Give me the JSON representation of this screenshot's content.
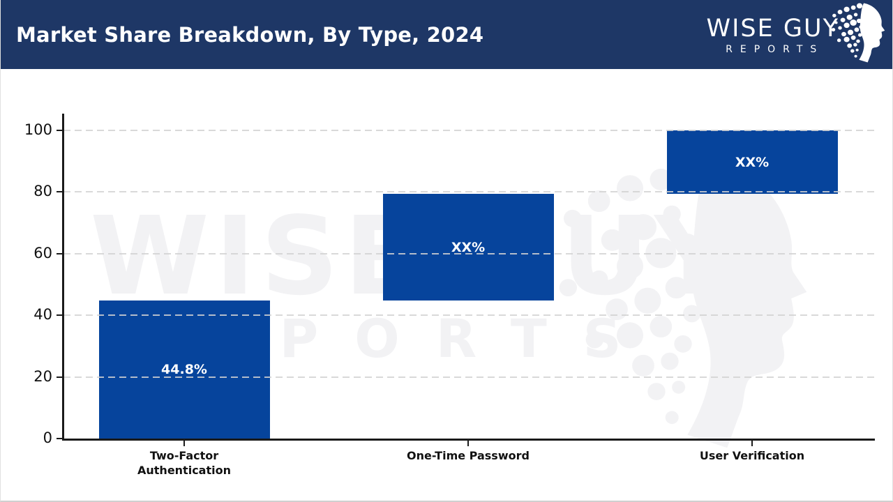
{
  "header": {
    "title": "Market Share Breakdown, By Type, 2024",
    "logo": {
      "name": "WISE GUY",
      "sub": "REPORTS"
    }
  },
  "watermark": {
    "line1": "WISE GUY",
    "line2": "REPORTS"
  },
  "chart_data": {
    "type": "bar",
    "subtype": "waterfall",
    "title": "Market Share Breakdown, By Type, 2024",
    "categories": [
      "Two-Factor\nAuthentication",
      "One-Time Password",
      "User Verification"
    ],
    "series": [
      {
        "name": "Market Share (%)",
        "segments": [
          {
            "category": "Two-Factor Authentication",
            "start": 0,
            "end": 44.8,
            "value": 44.8,
            "label": "44.8%"
          },
          {
            "category": "One-Time Password",
            "start": 44.8,
            "end": 79.3,
            "value": 34.5,
            "label": "XX%"
          },
          {
            "category": "User Verification",
            "start": 79.3,
            "end": 100,
            "value": 20.7,
            "label": "XX%"
          }
        ]
      }
    ],
    "yticks": [
      0,
      20,
      40,
      60,
      80,
      100
    ],
    "ylim": [
      0,
      105
    ],
    "grid": "horizontal-dashed",
    "legend": "none",
    "bar_color": "#06449c",
    "bar_label_color": "#ffffff",
    "axis_color": "#1a1a1a",
    "grid_color": "#d2d2d2",
    "header_color": "#1e3766"
  }
}
